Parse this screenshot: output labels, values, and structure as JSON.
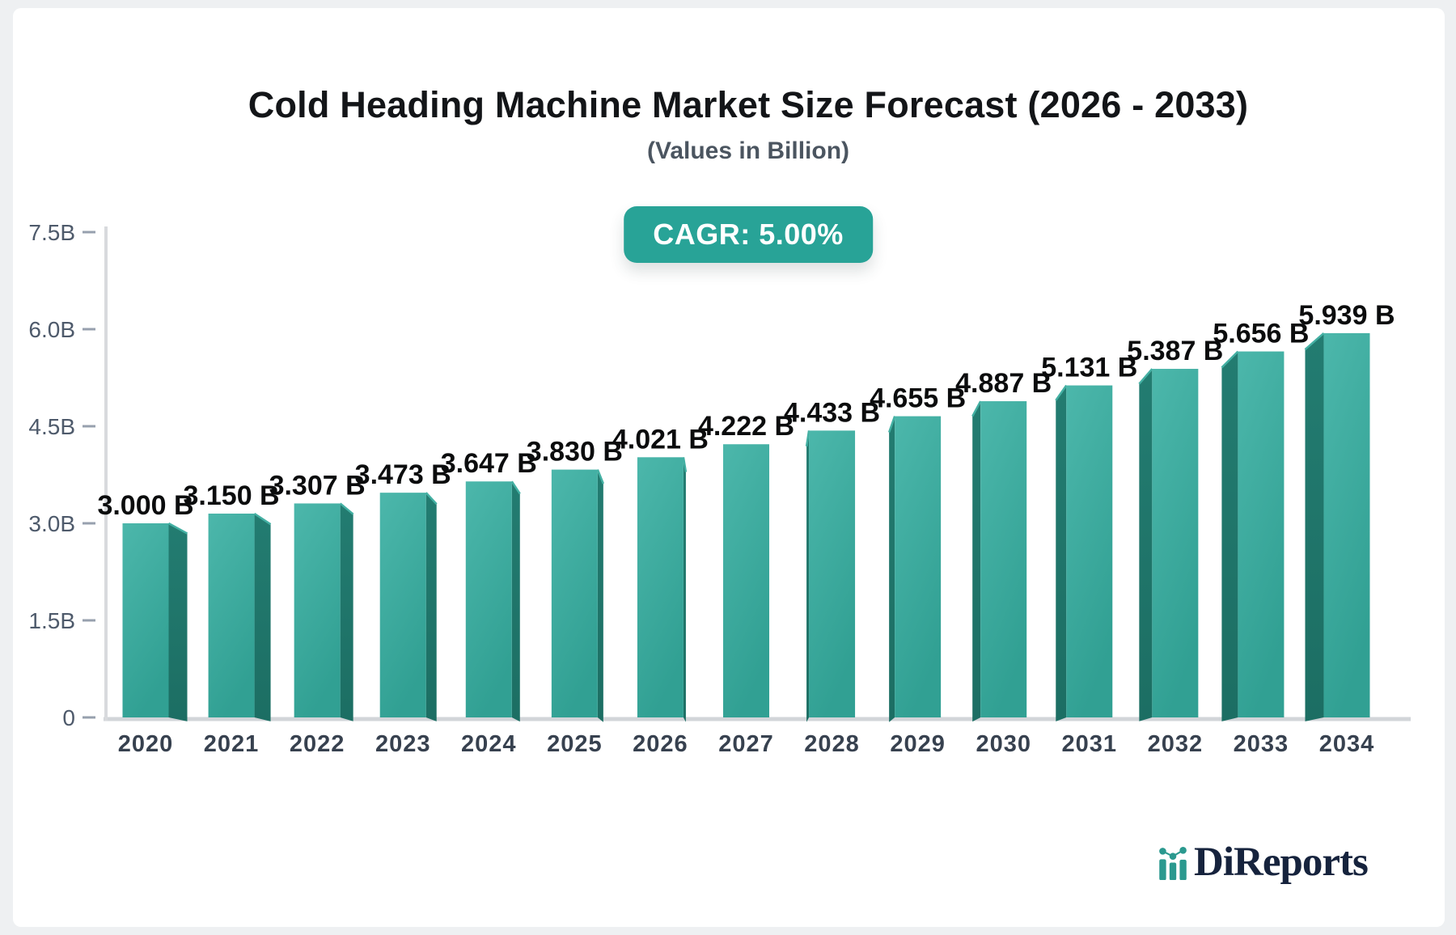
{
  "header": {
    "title": "Cold Heading Machine Market Size Forecast (2026 - 2033)",
    "subtitle": "(Values in Billion)",
    "cagr_badge": {
      "label": "CAGR: 5.00%",
      "background": "#28a397",
      "text_color": "#ffffff"
    }
  },
  "chart_data": {
    "type": "bar",
    "title": "Cold Heading Machine Market Size Forecast (2026 - 2033)",
    "subtitle": "(Values in Billion)",
    "unit": "Billion",
    "categories": [
      "2020",
      "2021",
      "2022",
      "2023",
      "2024",
      "2025",
      "2026",
      "2027",
      "2028",
      "2029",
      "2030",
      "2031",
      "2032",
      "2033",
      "2034"
    ],
    "values": [
      3.0,
      3.15,
      3.307,
      3.473,
      3.647,
      3.83,
      4.021,
      4.222,
      4.433,
      4.655,
      4.887,
      5.131,
      5.387,
      5.656,
      5.939
    ],
    "value_labels": [
      "3.000 B",
      "3.150 B",
      "3.307 B",
      "3.473 B",
      "3.647 B",
      "3.830 B",
      "4.021 B",
      "4.222 B",
      "4.433 B",
      "4.655 B",
      "4.887 B",
      "5.131 B",
      "5.387 B",
      "5.656 B",
      "5.939 B"
    ],
    "y_ticks": [
      {
        "value": 0,
        "label": "0"
      },
      {
        "value": 1.5,
        "label": "1.5B"
      },
      {
        "value": 3.0,
        "label": "3.0B"
      },
      {
        "value": 4.5,
        "label": "4.5B"
      },
      {
        "value": 6.0,
        "label": "6.0B"
      },
      {
        "value": 7.5,
        "label": "7.5B"
      }
    ],
    "ylim": [
      0,
      7.5
    ],
    "xlabel": "",
    "ylabel": "",
    "grid": false,
    "legend": "none",
    "colors": {
      "bar_front_top": "#4cb7ab",
      "bar_front_bottom": "#31a093",
      "bar_side_top": "#237c71",
      "bar_side_bottom": "#1c6e63",
      "bar_side_edge_highlight": "#44b0a3",
      "axis_line": "#d8dadd",
      "baseline": "#d2d5d9",
      "tick_mark": "#97a0ae",
      "y_tick_label": "#4e5a6b",
      "x_tick_label": "#37414f",
      "value_label": "#0b0c0d"
    }
  },
  "footer": {
    "logo_text": "DiReports",
    "logo_text_color": "#16233d",
    "logo_icon": "bar-chart-trend-icon",
    "logo_icon_color": "#2b998f"
  }
}
